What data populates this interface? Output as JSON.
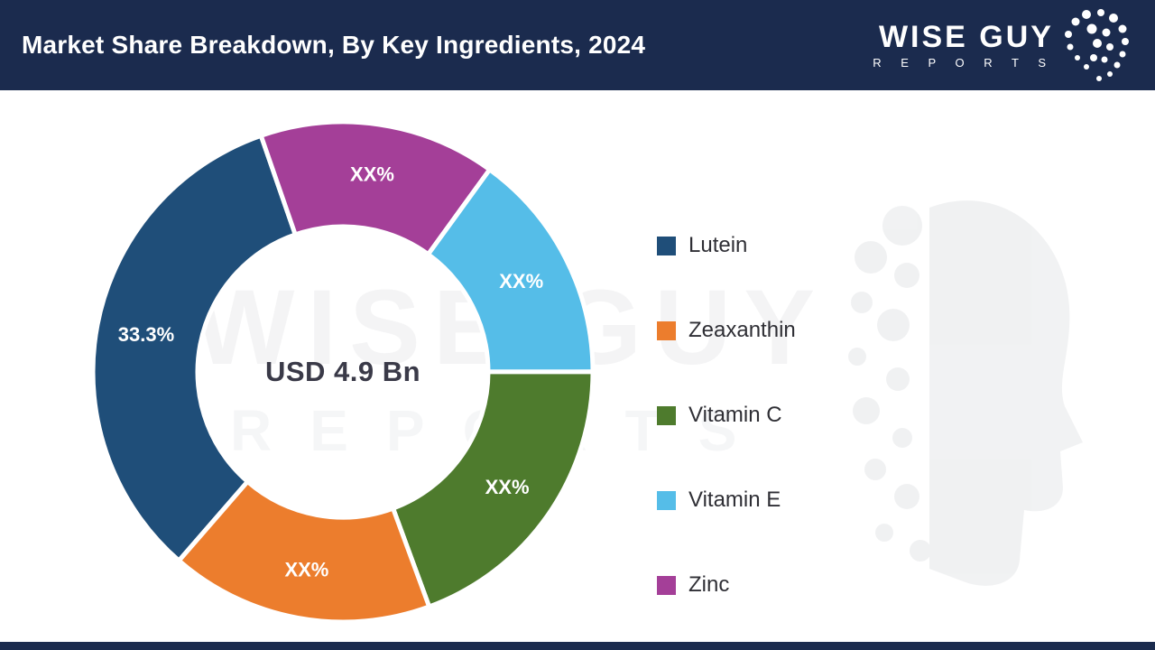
{
  "header": {
    "title": "Market Share Breakdown, By Key Ingredients, 2024",
    "bg_color": "#1b2b4e",
    "logo": {
      "line1": "WISE GUY",
      "line2": "R E P O R T S"
    }
  },
  "chart_data": {
    "type": "pie",
    "subtype": "donut",
    "title": "Market Share Breakdown, By Key Ingredients, 2024",
    "center_label": "USD 4.9 Bn",
    "start_angle_deg": 221,
    "legend_position": "right",
    "segments": [
      {
        "label": "Lutein",
        "value": 33.3,
        "display": "33.3%",
        "color": "#1f4e79"
      },
      {
        "label": "Zinc",
        "value": 15.3,
        "display": "XX%",
        "color": "#a43f98"
      },
      {
        "label": "Vitamin E",
        "value": 15.0,
        "display": "XX%",
        "color": "#55bde8"
      },
      {
        "label": "Vitamin C",
        "value": 19.4,
        "display": "XX%",
        "color": "#4e7b2d"
      },
      {
        "label": "Zeaxanthin",
        "value": 17.0,
        "display": "XX%",
        "color": "#ec7d2d"
      }
    ],
    "legend_order": [
      "Lutein",
      "Zeaxanthin",
      "Vitamin C",
      "Vitamin E",
      "Zinc"
    ]
  },
  "watermark": {
    "line1": "WISE GUY",
    "line2": "REPORTS"
  }
}
